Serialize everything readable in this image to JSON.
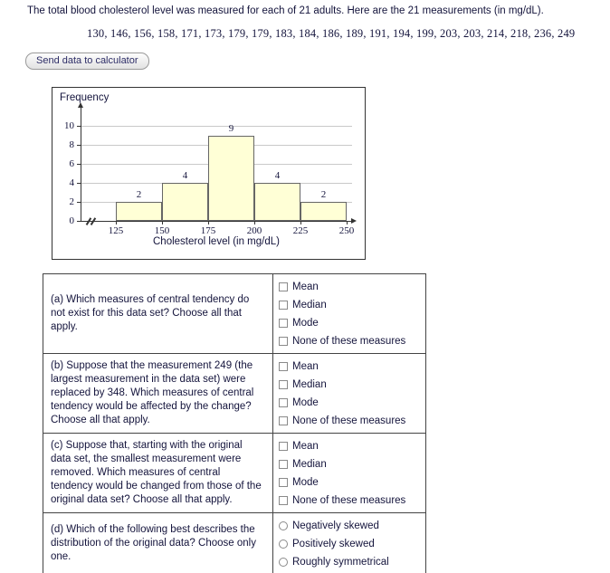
{
  "page": {
    "intro": "The total blood cholesterol level was measured for each of 21 adults. Here are the 21 measurements (in mg/dL).",
    "data_line": "130, 146, 156, 158, 171, 173, 179, 179, 183, 184, 186, 189, 191, 194, 199, 203, 203, 214, 218, 236, 249",
    "send_button_label": "Send data to calculator"
  },
  "chart_data": {
    "type": "bar",
    "title": "",
    "ylabel": "Frequency",
    "xlabel": "Cholesterol level (in mg/dL)",
    "x_ticks": [
      125,
      150,
      175,
      200,
      225,
      250
    ],
    "y_ticks": [
      0,
      2,
      4,
      6,
      8,
      10
    ],
    "ylim": [
      0,
      10
    ],
    "bins": [
      [
        125,
        150
      ],
      [
        150,
        175
      ],
      [
        175,
        200
      ],
      [
        200,
        225
      ],
      [
        225,
        250
      ]
    ],
    "values": [
      2,
      4,
      9,
      4,
      2
    ],
    "bar_labels": [
      "2",
      "4",
      "9",
      "4",
      "2"
    ],
    "bar_fill": "#ffffd6",
    "grid": true,
    "axis_break": true
  },
  "questions": [
    {
      "id": "a",
      "text": "(a) Which measures of central tendency do not exist for this data set? Choose all that apply.",
      "type": "checkbox",
      "options": [
        "Mean",
        "Median",
        "Mode",
        "None of these measures"
      ]
    },
    {
      "id": "b",
      "text": "(b) Suppose that the measurement 249 (the largest measurement in the data set) were replaced by 348. Which measures of central tendency would be affected by the change? Choose all that apply.",
      "type": "checkbox",
      "options": [
        "Mean",
        "Median",
        "Mode",
        "None of these measures"
      ]
    },
    {
      "id": "c",
      "text": "(c) Suppose that, starting with the original data set, the smallest measurement were removed. Which measures of central tendency would be changed from those of the original data set? Choose all that apply.",
      "type": "checkbox",
      "options": [
        "Mean",
        "Median",
        "Mode",
        "None of these measures"
      ]
    },
    {
      "id": "d",
      "text": "(d) Which of the following best describes the distribution of the original data? Choose only one.",
      "type": "radio",
      "options": [
        "Negatively skewed",
        "Positively skewed",
        "Roughly symmetrical"
      ]
    }
  ]
}
